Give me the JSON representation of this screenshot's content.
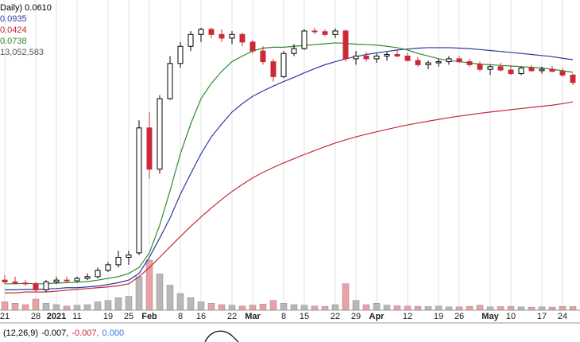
{
  "chart_data": {
    "type": "candlestick",
    "price_label": "Daily) 0.0610",
    "log_scale": true,
    "grid": true,
    "ylim": [
      0.00115,
      0.286
    ],
    "volume_lim": [
      0,
      200000000
    ],
    "categories": [
      "21",
      null,
      null,
      "28",
      null,
      "2021",
      null,
      "11",
      null,
      null,
      "19",
      null,
      "25",
      null,
      "Feb",
      null,
      null,
      "8",
      null,
      "16",
      null,
      null,
      "22",
      null,
      "Mar",
      null,
      null,
      "8",
      null,
      "15",
      null,
      null,
      "22",
      null,
      "29",
      null,
      "Apr",
      null,
      null,
      "12",
      null,
      null,
      "19",
      null,
      "26",
      null,
      null,
      "May",
      null,
      "10",
      null,
      null,
      "17",
      null,
      "24",
      null
    ],
    "open": [
      0.0015,
      0.00145,
      0.00142,
      0.0014,
      0.00125,
      0.00145,
      0.0015,
      0.00148,
      0.00155,
      0.0016,
      0.0018,
      0.002,
      0.0023,
      0.0025,
      0.026,
      0.012,
      0.045,
      0.087,
      0.12,
      0.15,
      0.165,
      0.15,
      0.14,
      0.15,
      0.13,
      0.11,
      0.09,
      0.068,
      0.105,
      0.115,
      0.16,
      0.158,
      0.15,
      0.16,
      0.095,
      0.1,
      0.095,
      0.1,
      0.103,
      0.1,
      0.092,
      0.085,
      0.088,
      0.09,
      0.095,
      0.09,
      0.085,
      0.078,
      0.082,
      0.077,
      0.072,
      0.08,
      0.076,
      0.078,
      0.075,
      0.07
    ],
    "high": [
      0.00165,
      0.0016,
      0.0015,
      0.00145,
      0.0015,
      0.0016,
      0.0016,
      0.0016,
      0.0017,
      0.0019,
      0.0021,
      0.0026,
      0.0026,
      0.03,
      0.035,
      0.048,
      0.1,
      0.13,
      0.16,
      0.17,
      0.17,
      0.165,
      0.16,
      0.155,
      0.135,
      0.12,
      0.095,
      0.11,
      0.125,
      0.165,
      0.17,
      0.165,
      0.168,
      0.165,
      0.11,
      0.108,
      0.105,
      0.108,
      0.112,
      0.107,
      0.098,
      0.092,
      0.095,
      0.1,
      0.1,
      0.095,
      0.09,
      0.085,
      0.088,
      0.084,
      0.082,
      0.084,
      0.082,
      0.083,
      0.08,
      0.072
    ],
    "low": [
      0.0014,
      0.00138,
      0.00135,
      0.0012,
      0.0012,
      0.0014,
      0.00142,
      0.00145,
      0.0015,
      0.00155,
      0.00175,
      0.0019,
      0.002,
      0.0024,
      0.01,
      0.011,
      0.044,
      0.08,
      0.11,
      0.13,
      0.14,
      0.13,
      0.125,
      0.12,
      0.105,
      0.085,
      0.062,
      0.066,
      0.1,
      0.112,
      0.15,
      0.145,
      0.14,
      0.09,
      0.085,
      0.09,
      0.088,
      0.092,
      0.098,
      0.09,
      0.082,
      0.078,
      0.082,
      0.085,
      0.088,
      0.082,
      0.075,
      0.07,
      0.075,
      0.07,
      0.07,
      0.074,
      0.072,
      0.074,
      0.068,
      0.058
    ],
    "close": [
      0.00145,
      0.00142,
      0.0014,
      0.00125,
      0.00145,
      0.0015,
      0.00148,
      0.00155,
      0.0016,
      0.0018,
      0.002,
      0.0023,
      0.0024,
      0.026,
      0.012,
      0.045,
      0.087,
      0.12,
      0.15,
      0.165,
      0.15,
      0.14,
      0.15,
      0.13,
      0.11,
      0.09,
      0.068,
      0.105,
      0.115,
      0.16,
      0.158,
      0.15,
      0.16,
      0.095,
      0.1,
      0.095,
      0.1,
      0.103,
      0.1,
      0.092,
      0.085,
      0.088,
      0.09,
      0.095,
      0.09,
      0.085,
      0.078,
      0.082,
      0.077,
      0.072,
      0.08,
      0.076,
      0.078,
      0.075,
      0.07,
      0.061
    ],
    "up_color": "#ffffff",
    "down_color": "#cc2936",
    "outline_color": "#000000",
    "series": [
      {
        "color": "#2b3a9e",
        "last_label": "0.0935",
        "values": [
          0.00125,
          0.00125,
          0.00126,
          0.00126,
          0.00127,
          0.00128,
          0.0013,
          0.0013,
          0.00132,
          0.00134,
          0.00138,
          0.00143,
          0.0015,
          0.0017,
          0.0023,
          0.0033,
          0.0048,
          0.0075,
          0.011,
          0.016,
          0.022,
          0.028,
          0.035,
          0.041,
          0.047,
          0.052,
          0.057,
          0.062,
          0.067,
          0.073,
          0.079,
          0.085,
          0.09,
          0.095,
          0.099,
          0.103,
          0.106,
          0.109,
          0.112,
          0.114,
          0.116,
          0.117,
          0.117,
          0.117,
          0.116,
          0.115,
          0.113,
          0.111,
          0.109,
          0.107,
          0.105,
          0.103,
          0.101,
          0.099,
          0.096,
          0.0935
        ]
      },
      {
        "color": "#c8283a",
        "last_label": "0.0424",
        "values": [
          0.00118,
          0.00118,
          0.0012,
          0.0012,
          0.0012,
          0.00122,
          0.00124,
          0.00126,
          0.00128,
          0.0013,
          0.00132,
          0.00135,
          0.0014,
          0.0016,
          0.0019,
          0.0023,
          0.0028,
          0.0034,
          0.0041,
          0.0049,
          0.0058,
          0.0068,
          0.0079,
          0.009,
          0.0102,
          0.0113,
          0.0124,
          0.0135,
          0.0146,
          0.0158,
          0.017,
          0.0183,
          0.0196,
          0.0208,
          0.022,
          0.0231,
          0.0242,
          0.0253,
          0.0264,
          0.0275,
          0.0285,
          0.0295,
          0.0305,
          0.0315,
          0.0324,
          0.0333,
          0.0342,
          0.035,
          0.0358,
          0.0366,
          0.0374,
          0.0382,
          0.039,
          0.0398,
          0.041,
          0.0424
        ]
      },
      {
        "color": "#2e8a2e",
        "last_label": "0.0738",
        "values": [
          0.0014,
          0.0014,
          0.00141,
          0.0014,
          0.0014,
          0.00142,
          0.00143,
          0.00144,
          0.00146,
          0.0015,
          0.00155,
          0.0016,
          0.0017,
          0.0019,
          0.0025,
          0.0042,
          0.008,
          0.016,
          0.028,
          0.045,
          0.06,
          0.075,
          0.09,
          0.1,
          0.11,
          0.116,
          0.118,
          0.118,
          0.12,
          0.122,
          0.124,
          0.126,
          0.128,
          0.127,
          0.125,
          0.124,
          0.123,
          0.12,
          0.117,
          0.112,
          0.105,
          0.1,
          0.095,
          0.092,
          0.09,
          0.088,
          0.086,
          0.085,
          0.084,
          0.083,
          0.082,
          0.081,
          0.08,
          0.078,
          0.076,
          0.0738
        ]
      }
    ],
    "volume_label": "13,052,583",
    "volume_color": "#b8b8b8",
    "volume_down_color": "#eaa0a6",
    "volume": [
      30000000,
      25000000,
      20000000,
      40000000,
      25000000,
      20000000,
      15000000,
      18000000,
      20000000,
      30000000,
      35000000,
      45000000,
      50000000,
      120000000,
      180000000,
      130000000,
      90000000,
      60000000,
      45000000,
      30000000,
      25000000,
      20000000,
      18000000,
      15000000,
      18000000,
      22000000,
      35000000,
      25000000,
      20000000,
      18000000,
      15000000,
      14000000,
      20000000,
      95000000,
      35000000,
      20000000,
      25000000,
      18000000,
      16000000,
      15000000,
      14000000,
      13000000,
      15000000,
      12000000,
      12000000,
      14000000,
      18000000,
      12000000,
      13000000,
      14000000,
      12000000,
      11000000,
      12000000,
      11000000,
      14000000,
      13052583
    ],
    "macd_readout": [
      {
        "text": "(12,26,9)",
        "color": "#000000"
      },
      {
        "text": "-0.007,",
        "color": "#000000"
      },
      {
        "text": "-0.007,",
        "color": "#cc2936"
      },
      {
        "text": "0.000",
        "color": "#2a7fd4"
      }
    ]
  }
}
